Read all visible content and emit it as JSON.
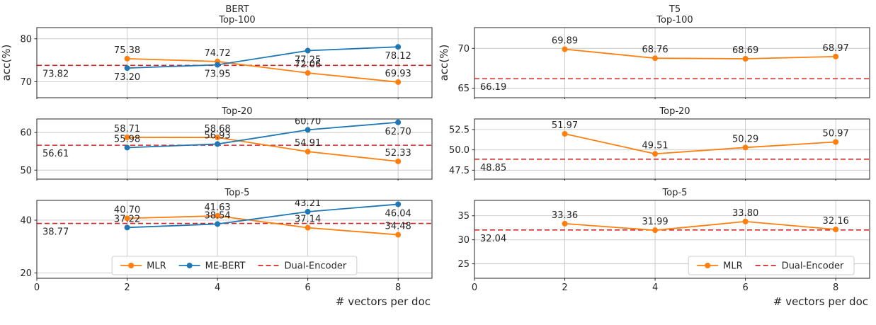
{
  "chart_data": [
    {
      "type": "line",
      "suptitle": "BERT",
      "ylabel": "acc(%)",
      "xlabel": "# vectors per doc",
      "x": [
        2,
        4,
        6,
        8
      ],
      "xlim": [
        0,
        8.75
      ],
      "xticks": [
        0,
        2,
        4,
        6,
        8
      ],
      "xtick_labels": [
        "0",
        "2",
        "4",
        "6",
        "8"
      ],
      "grid": true,
      "legend_loc": "lower center",
      "legend": [
        {
          "name": "MLR",
          "style": "marker-line",
          "color": "#ff7f0e"
        },
        {
          "name": "ME-BERT",
          "style": "marker-line",
          "color": "#1f77b4"
        },
        {
          "name": "Dual-Encoder",
          "style": "dashed",
          "color": "#d62728"
        }
      ],
      "subplots": [
        {
          "title": "Top-100",
          "ylim": [
            66.3,
            82.6
          ],
          "yticks": [
            70,
            80
          ],
          "ytick_labels": [
            "70",
            "80"
          ],
          "series": [
            {
              "name": "MLR",
              "color": "#ff7f0e",
              "values": [
                75.38,
                74.72,
                72.06,
                69.93
              ],
              "label_side": [
                "above",
                "above",
                "above",
                "above"
              ]
            },
            {
              "name": "ME-BERT",
              "color": "#1f77b4",
              "values": [
                73.2,
                73.95,
                77.25,
                78.12
              ],
              "label_side": [
                "below",
                "below",
                "below",
                "below"
              ]
            }
          ],
          "baseline": {
            "name": "Dual-Encoder",
            "value": 73.82,
            "label": "73.82",
            "color": "#d62728"
          }
        },
        {
          "title": "Top-20",
          "ylim": [
            47.6,
            63.6
          ],
          "yticks": [
            50,
            60
          ],
          "ytick_labels": [
            "50",
            "60"
          ],
          "series": [
            {
              "name": "MLR",
              "color": "#ff7f0e",
              "values": [
                58.71,
                58.68,
                54.91,
                52.33
              ],
              "label_side": [
                "above",
                "above",
                "above",
                "above"
              ]
            },
            {
              "name": "ME-BERT",
              "color": "#1f77b4",
              "values": [
                55.98,
                56.93,
                60.7,
                62.7
              ],
              "label_side": [
                "above",
                "above",
                "above",
                "below"
              ]
            }
          ],
          "baseline": {
            "name": "Dual-Encoder",
            "value": 56.61,
            "label": "56.61",
            "color": "#d62728"
          }
        },
        {
          "title": "Top-5",
          "ylim": [
            18.0,
            47.5
          ],
          "yticks": [
            20,
            40
          ],
          "ytick_labels": [
            "20",
            "40"
          ],
          "series": [
            {
              "name": "MLR",
              "color": "#ff7f0e",
              "values": [
                40.7,
                41.63,
                37.14,
                34.48
              ],
              "label_side": [
                "above",
                "above",
                "above",
                "above"
              ]
            },
            {
              "name": "ME-BERT",
              "color": "#1f77b4",
              "values": [
                37.22,
                38.54,
                43.21,
                46.04
              ],
              "label_side": [
                "above",
                "above",
                "above",
                "below"
              ]
            }
          ],
          "baseline": {
            "name": "Dual-Encoder",
            "value": 38.77,
            "label": "38.77",
            "color": "#d62728"
          }
        }
      ]
    },
    {
      "type": "line",
      "suptitle": "T5",
      "ylabel": "acc(%)",
      "xlabel": "# vectors per doc",
      "x": [
        2,
        4,
        6,
        8
      ],
      "xlim": [
        0,
        8.75
      ],
      "xticks": [
        0,
        2,
        4,
        6,
        8
      ],
      "xtick_labels": [
        "0",
        "2",
        "4",
        "6",
        "8"
      ],
      "grid": true,
      "legend_loc": "lower right",
      "legend": [
        {
          "name": "MLR",
          "style": "marker-line",
          "color": "#ff7f0e"
        },
        {
          "name": "Dual-Encoder",
          "style": "dashed",
          "color": "#d62728"
        }
      ],
      "subplots": [
        {
          "title": "Top-100",
          "ylim": [
            63.8,
            72.6
          ],
          "yticks": [
            65,
            70
          ],
          "ytick_labels": [
            "65",
            "70"
          ],
          "series": [
            {
              "name": "MLR",
              "color": "#ff7f0e",
              "values": [
                69.89,
                68.76,
                68.69,
                68.97
              ],
              "label_side": [
                "above",
                "above",
                "above",
                "above"
              ]
            }
          ],
          "baseline": {
            "name": "Dual-Encoder",
            "value": 66.19,
            "label": "66.19",
            "color": "#d62728"
          }
        },
        {
          "title": "Top-20",
          "ylim": [
            46.4,
            53.8
          ],
          "yticks": [
            47.5,
            50.0,
            52.5
          ],
          "ytick_labels": [
            "47.5",
            "50.0",
            "52.5"
          ],
          "series": [
            {
              "name": "MLR",
              "color": "#ff7f0e",
              "values": [
                51.97,
                49.51,
                50.29,
                50.97
              ],
              "label_side": [
                "above",
                "above",
                "above",
                "above"
              ]
            }
          ],
          "baseline": {
            "name": "Dual-Encoder",
            "value": 48.85,
            "label": "48.85",
            "color": "#d62728"
          }
        },
        {
          "title": "Top-5",
          "ylim": [
            22.0,
            38.2
          ],
          "yticks": [
            25,
            30,
            35
          ],
          "ytick_labels": [
            "25",
            "30",
            "35"
          ],
          "series": [
            {
              "name": "MLR",
              "color": "#ff7f0e",
              "values": [
                33.36,
                31.99,
                33.8,
                32.16
              ],
              "label_side": [
                "above",
                "above",
                "above",
                "above"
              ]
            }
          ],
          "baseline": {
            "name": "Dual-Encoder",
            "value": 32.04,
            "label": "32.04",
            "color": "#d62728"
          }
        }
      ]
    }
  ]
}
